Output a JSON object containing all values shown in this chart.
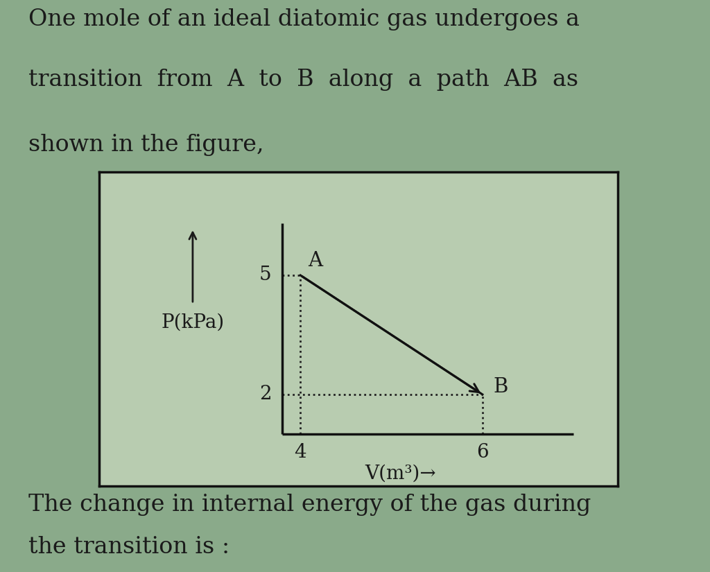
{
  "background_color": "#8aaa8a",
  "text_color": "#1a1a1a",
  "title_lines": [
    "One mole of an ideal diatomic gas undergoes a",
    "transition from A to B along a path AB as",
    "shown in the figure,"
  ],
  "bottom_lines": [
    "The change in internal energy of the gas during",
    "the transition is :"
  ],
  "graph_bg": "#b8ccb0",
  "point_A": [
    4,
    5
  ],
  "point_B": [
    6,
    2
  ],
  "p_ticks": [
    2,
    5
  ],
  "v_ticks": [
    4,
    6
  ],
  "xlabel": "V(m³)→",
  "ylabel_text": "P(kPa)",
  "dot_color": "#222222",
  "line_color": "#111111",
  "arrow_color": "#111111",
  "box_color": "#111111",
  "axis_color": "#111111",
  "font_size_title": 24,
  "font_size_bottom": 24,
  "font_size_label": 20,
  "font_size_tick": 20,
  "font_size_point": 21,
  "font_size_xlabel": 20
}
